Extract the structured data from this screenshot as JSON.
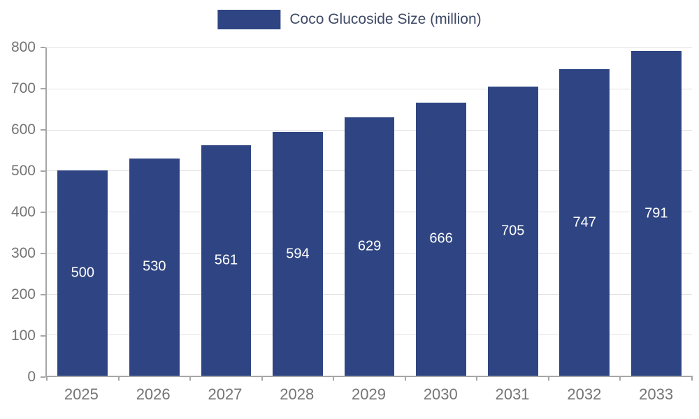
{
  "legend": {
    "label": "Coco Glucoside Size (million)"
  },
  "colors": {
    "bar": "#2f4583",
    "legend_text": "#3f4a66",
    "axis_text": "#757575",
    "grid": "#e0e0e0",
    "axis_line": "#a6a6a6",
    "bar_label_text": "#ffffff"
  },
  "chart_data": {
    "type": "bar",
    "title": "Coco Glucoside Size (million)",
    "categories": [
      "2025",
      "2026",
      "2027",
      "2028",
      "2029",
      "2030",
      "2031",
      "2032",
      "2033"
    ],
    "values": [
      500,
      530,
      561,
      594,
      629,
      666,
      705,
      747,
      791
    ],
    "xlabel": "",
    "ylabel": "",
    "ylim": [
      0,
      800
    ],
    "ytick_step": 100,
    "yticks": [
      0,
      100,
      200,
      300,
      400,
      500,
      600,
      700,
      800
    ],
    "grid": true,
    "legend_position": "top-center",
    "bar_labels_inside": true
  }
}
